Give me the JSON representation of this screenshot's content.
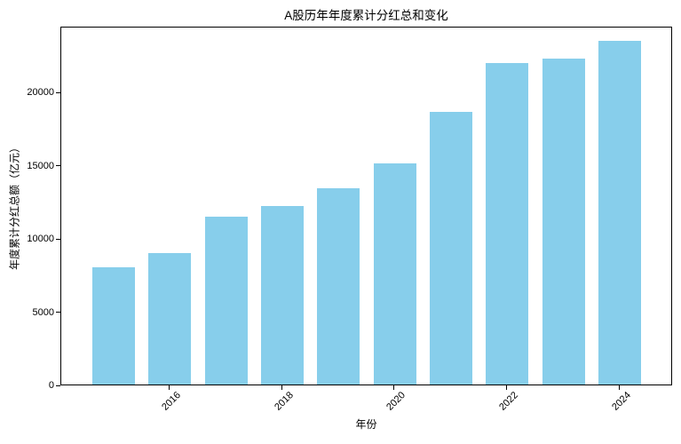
{
  "chart_data": {
    "type": "bar",
    "title": "A股历年年度累计分红总和变化",
    "xlabel": "年份",
    "ylabel": "年度累计分红总额（亿元）",
    "categories": [
      2015,
      2016,
      2017,
      2018,
      2019,
      2020,
      2021,
      2022,
      2023,
      2024
    ],
    "values": [
      8000,
      9000,
      11450,
      12200,
      13400,
      15100,
      18600,
      21950,
      22250,
      23450
    ],
    "yticks": [
      0,
      5000,
      10000,
      15000,
      20000
    ],
    "xticks": [
      2016,
      2018,
      2020,
      2022,
      2024
    ],
    "xtick_rotation": 45,
    "ylim": [
      0,
      24500
    ],
    "bar_color": "#87CEEB",
    "axis_color": "#000000",
    "grid": false,
    "legend": null
  }
}
